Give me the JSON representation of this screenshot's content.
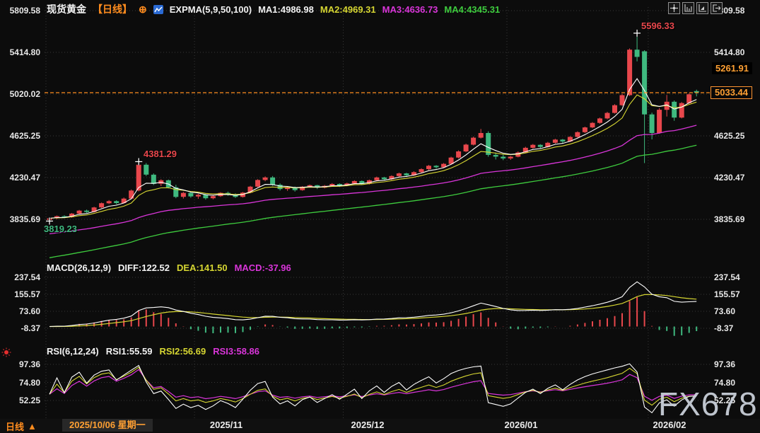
{
  "header": {
    "symbol": "现货黄金",
    "period_tag": "【日线】",
    "plus_icon": "⊕",
    "expma_label": "EXPMA(5,9,50,100)",
    "ma1_label": "MA1:4986.98",
    "ma2_label": "MA2:4969.31",
    "ma3_label": "MA3:4636.73",
    "ma4_label": "MA4:4345.31"
  },
  "toolbar": {
    "icons": [
      "crosshair",
      "new-indicator-window",
      "indicator-settings",
      "close-panel"
    ]
  },
  "macd_header": {
    "name": "MACD(26,12,9)",
    "diff": "DIFF:122.52",
    "dea": "DEA:141.50",
    "macd": "MACD:-37.96"
  },
  "rsi_header": {
    "name": "RSI(6,12,24)",
    "rsi1": "RSI1:55.59",
    "rsi2": "RSI2:56.69",
    "rsi3": "RSI3:58.86"
  },
  "bottom_bar": {
    "period_label": "日线",
    "period_arrow": "▲",
    "date_chip": "2025/10/06 星期一",
    "months": [
      "2025/11",
      "2025/12",
      "2026/01",
      "2026/02"
    ]
  },
  "watermark": "FX678",
  "colors": {
    "background": "#0c0c0c",
    "grid": "#373737",
    "axis_text": "#e8e8e8",
    "up_candle": "#e8474c",
    "down_candle": "#3fb97f",
    "ma1": "#ffffff",
    "ma2": "#d6d632",
    "ma3": "#d935d9",
    "ma4": "#3ecc3e",
    "current_price_line": "#ff8c1e",
    "highlight_tag": "#ffa033",
    "watermark": "#ccd2dc"
  },
  "chart_data": {
    "type": "candlestick",
    "title": "现货黄金 日线 (Spot Gold Daily)",
    "indicator_params": {
      "expma": [
        5,
        9,
        50,
        100
      ],
      "macd": [
        26,
        12,
        9
      ],
      "rsi": [
        6,
        12,
        24
      ]
    },
    "price_axis_ticks": [
      "5809.58",
      "5414.80",
      "5020.02",
      "4625.25",
      "4230.47",
      "3835.69"
    ],
    "macd_axis_ticks": [
      "237.54",
      "155.57",
      "73.60",
      "-8.37"
    ],
    "rsi_axis_ticks": [
      "97.36",
      "74.80",
      "52.25"
    ],
    "x_axis_labels": [
      "2025/10/06 星期一",
      "2025/11",
      "2025/12",
      "2026/01",
      "2026/02"
    ],
    "month_start_indices": [
      20,
      40,
      62,
      81
    ],
    "annotations": {
      "first_low": "3819.23",
      "oct_high": "4381.29",
      "peak_high": "5596.33",
      "right_tag": "5261.91",
      "last_price": "5033.44"
    },
    "marker_indices": {
      "first_low": 0,
      "oct_high": 12,
      "peak_high": 79
    },
    "candles": [
      [
        3828,
        3852,
        3819.23,
        3846
      ],
      [
        3846,
        3872,
        3838,
        3865
      ],
      [
        3865,
        3874,
        3848,
        3856
      ],
      [
        3856,
        3896,
        3850,
        3890
      ],
      [
        3890,
        3925,
        3884,
        3918
      ],
      [
        3918,
        3928,
        3896,
        3905
      ],
      [
        3905,
        3955,
        3900,
        3948
      ],
      [
        3948,
        3995,
        3942,
        3988
      ],
      [
        3988,
        4018,
        3980,
        4008
      ],
      [
        4008,
        4016,
        3978,
        3990
      ],
      [
        3990,
        4042,
        3984,
        4032
      ],
      [
        4032,
        4118,
        4026,
        4108
      ],
      [
        4108,
        4381.29,
        4100,
        4352
      ],
      [
        4352,
        4368,
        4245,
        4258
      ],
      [
        4258,
        4270,
        4160,
        4172
      ],
      [
        4172,
        4215,
        4150,
        4205
      ],
      [
        4205,
        4212,
        4128,
        4138
      ],
      [
        4138,
        4162,
        4035,
        4048
      ],
      [
        4048,
        4095,
        4032,
        4085
      ],
      [
        4085,
        4092,
        4040,
        4052
      ],
      [
        4052,
        4078,
        4030,
        4068
      ],
      [
        4068,
        4075,
        4022,
        4035
      ],
      [
        4035,
        4062,
        4025,
        4055
      ],
      [
        4055,
        4092,
        4048,
        4086
      ],
      [
        4086,
        4098,
        4058,
        4070
      ],
      [
        4070,
        4082,
        4038,
        4048
      ],
      [
        4048,
        4095,
        4042,
        4088
      ],
      [
        4088,
        4152,
        4082,
        4145
      ],
      [
        4145,
        4215,
        4140,
        4208
      ],
      [
        4208,
        4242,
        4196,
        4232
      ],
      [
        4232,
        4245,
        4152,
        4162
      ],
      [
        4162,
        4175,
        4108,
        4122
      ],
      [
        4122,
        4148,
        4105,
        4140
      ],
      [
        4140,
        4146,
        4098,
        4112
      ],
      [
        4112,
        4150,
        4106,
        4144
      ],
      [
        4144,
        4165,
        4138,
        4158
      ],
      [
        4158,
        4162,
        4122,
        4135
      ],
      [
        4135,
        4160,
        4128,
        4152
      ],
      [
        4152,
        4178,
        4145,
        4170
      ],
      [
        4170,
        4176,
        4142,
        4155
      ],
      [
        4155,
        4182,
        4148,
        4175
      ],
      [
        4175,
        4205,
        4168,
        4198
      ],
      [
        4198,
        4204,
        4160,
        4172
      ],
      [
        4172,
        4212,
        4165,
        4205
      ],
      [
        4205,
        4240,
        4198,
        4232
      ],
      [
        4232,
        4238,
        4205,
        4215
      ],
      [
        4215,
        4252,
        4208,
        4245
      ],
      [
        4245,
        4278,
        4238,
        4270
      ],
      [
        4270,
        4276,
        4242,
        4252
      ],
      [
        4252,
        4290,
        4246,
        4282
      ],
      [
        4282,
        4318,
        4275,
        4310
      ],
      [
        4310,
        4350,
        4302,
        4342
      ],
      [
        4342,
        4348,
        4315,
        4328
      ],
      [
        4328,
        4368,
        4320,
        4360
      ],
      [
        4360,
        4428,
        4352,
        4420
      ],
      [
        4420,
        4488,
        4412,
        4478
      ],
      [
        4478,
        4552,
        4470,
        4542
      ],
      [
        4542,
        4618,
        4535,
        4608
      ],
      [
        4608,
        4690,
        4600,
        4652
      ],
      [
        4652,
        4668,
        4428,
        4445
      ],
      [
        4445,
        4468,
        4402,
        4428
      ],
      [
        4428,
        4448,
        4395,
        4412
      ],
      [
        4412,
        4435,
        4398,
        4428
      ],
      [
        4428,
        4478,
        4422,
        4468
      ],
      [
        4468,
        4522,
        4462,
        4512
      ],
      [
        4512,
        4548,
        4505,
        4540
      ],
      [
        4540,
        4546,
        4508,
        4520
      ],
      [
        4520,
        4568,
        4514,
        4560
      ],
      [
        4560,
        4598,
        4552,
        4590
      ],
      [
        4590,
        4596,
        4558,
        4572
      ],
      [
        4572,
        4622,
        4566,
        4615
      ],
      [
        4615,
        4668,
        4608,
        4660
      ],
      [
        4660,
        4712,
        4652,
        4705
      ],
      [
        4705,
        4755,
        4698,
        4748
      ],
      [
        4748,
        4798,
        4740,
        4790
      ],
      [
        4790,
        4852,
        4782,
        4842
      ],
      [
        4842,
        4925,
        4836,
        4915
      ],
      [
        4915,
        5022,
        4908,
        5010
      ],
      [
        5010,
        5452,
        5002,
        5440
      ],
      [
        5440,
        5596.33,
        5330,
        5372
      ],
      [
        5425,
        5435,
        4368,
        4828
      ],
      [
        4828,
        4845,
        4592,
        4652
      ],
      [
        4652,
        4888,
        4645,
        4872
      ],
      [
        4872,
        5012,
        4808,
        4948
      ],
      [
        4948,
        4960,
        4768,
        4798
      ],
      [
        4798,
        4945,
        4790,
        4935
      ],
      [
        4935,
        5028,
        4928,
        5018
      ],
      [
        5048,
        5062,
        4998,
        5033.44
      ]
    ]
  }
}
